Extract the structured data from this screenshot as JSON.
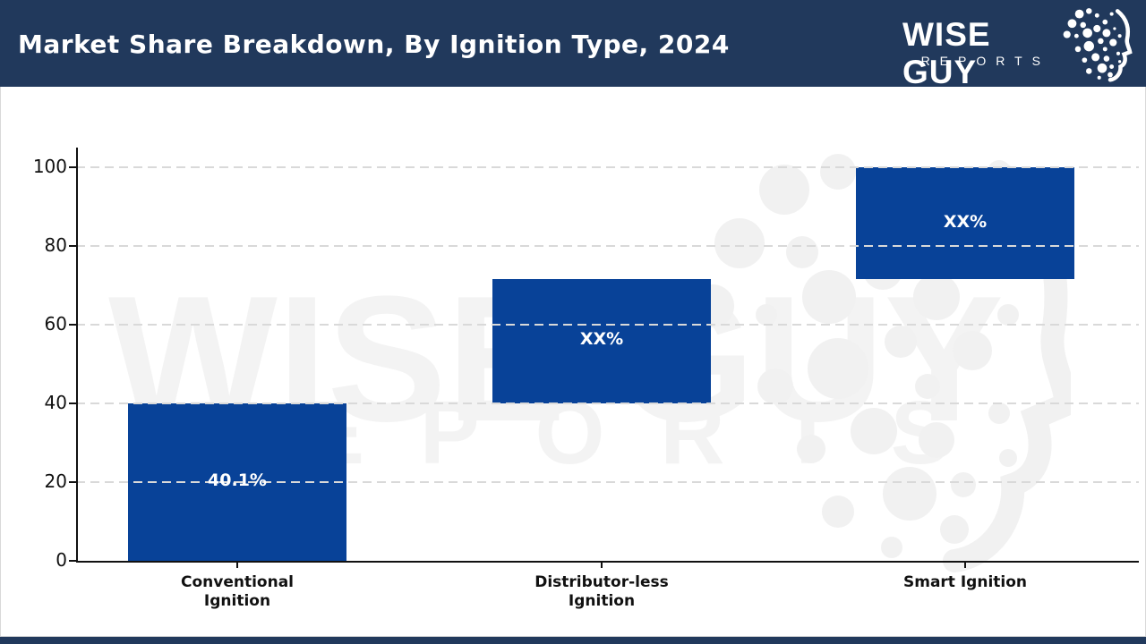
{
  "header": {
    "title": "Market Share Breakdown, By Ignition Type, 2024",
    "bg_color": "#21395c",
    "logo": {
      "wordmark": "WISE GUY",
      "subtext": "REPORTS"
    }
  },
  "watermark": {
    "wordmark": "WISE GUY",
    "subtext": "REPORTS"
  },
  "chart_data": {
    "type": "bar",
    "variant": "stacked-waterfall-percent",
    "title": "Market Share Breakdown, By Ignition Type, 2024",
    "categories": [
      [
        "Conventional",
        "Ignition"
      ],
      [
        "Distributor-less",
        "Ignition"
      ],
      [
        "Smart Ignition"
      ]
    ],
    "segments": [
      {
        "category": "Conventional Ignition",
        "start": 0,
        "end": 40.1,
        "label": "40.1%"
      },
      {
        "category": "Distributor-less Ignition",
        "start": 40.1,
        "end": 71.5,
        "label": "XX%"
      },
      {
        "category": "Smart Ignition",
        "start": 71.5,
        "end": 100,
        "label": "XX%"
      }
    ],
    "y_ticks": [
      0,
      20,
      40,
      60,
      80,
      100
    ],
    "ylim": [
      0,
      105
    ],
    "xlabel": "",
    "ylabel": "",
    "legend": "none",
    "grid": "dashed-horizontal-above-bars",
    "bar_color": "#084298",
    "bar_label_color": "#ffffff",
    "axis_color": "#111111",
    "grid_color": "#d9d9d9"
  }
}
